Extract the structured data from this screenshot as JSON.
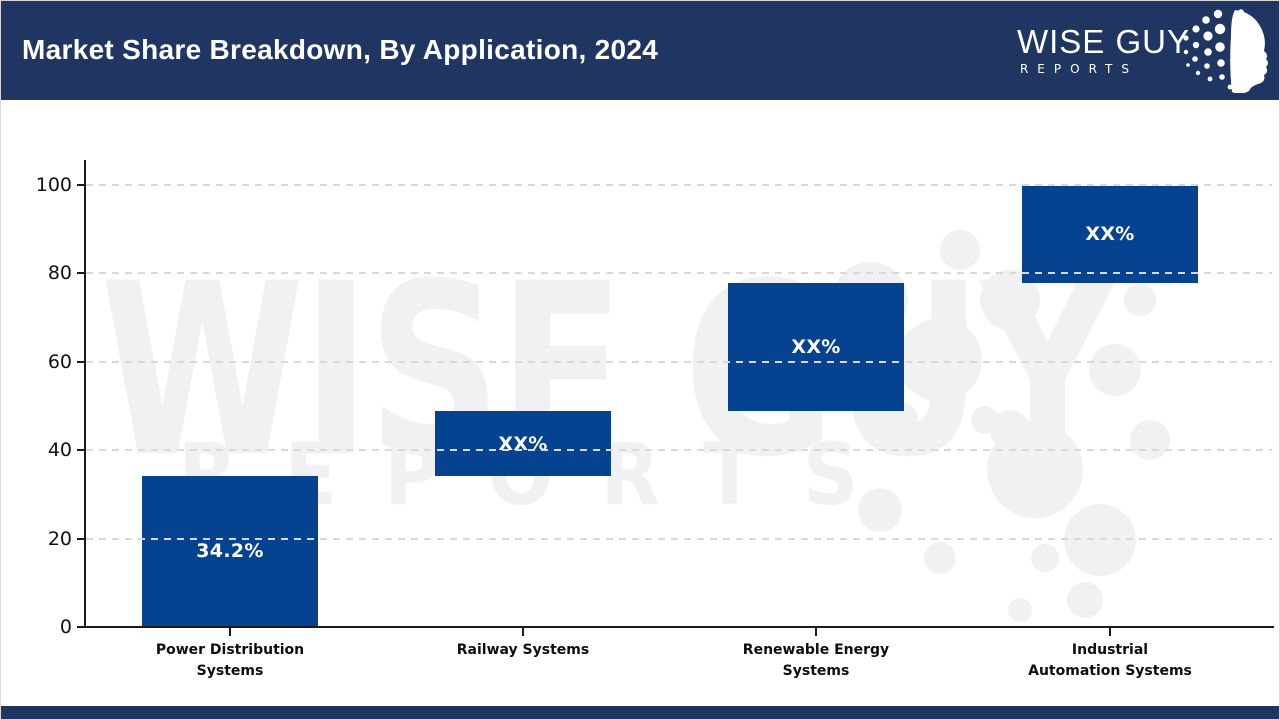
{
  "header": {
    "title": "Market Share Breakdown, By Application, 2024",
    "logo": {
      "wordmark": "WISE GUY",
      "sub": "REPORTS"
    }
  },
  "watermark": {
    "wordmark": "WISE GUY",
    "sub": "REPORTS"
  },
  "chart_data": {
    "type": "bar",
    "subtype": "waterfall-floating-segments",
    "title": "Market Share Breakdown, By Application, 2024",
    "categories": [
      "Power Distribution Systems",
      "Railway Systems",
      "Renewable Energy Systems",
      "Industrial Automation Systems"
    ],
    "category_lines": [
      [
        "Power Distribution",
        "Systems"
      ],
      [
        "Railway Systems"
      ],
      [
        "Renewable Energy",
        "Systems"
      ],
      [
        "Industrial",
        "Automation Systems"
      ]
    ],
    "segments": [
      {
        "category": "Power Distribution Systems",
        "start": 0,
        "end": 34.2,
        "label": "34.2%"
      },
      {
        "category": "Railway Systems",
        "start": 34.2,
        "end": 48.8,
        "label": "XX%"
      },
      {
        "category": "Renewable Energy Systems",
        "start": 48.8,
        "end": 77.8,
        "label": "XX%"
      },
      {
        "category": "Industrial Automation Systems",
        "start": 77.8,
        "end": 99.8,
        "label": "XX%"
      }
    ],
    "yticks": [
      0,
      20,
      40,
      60,
      80,
      100
    ],
    "ylim": [
      0,
      105
    ],
    "xlabel": "",
    "ylabel": "",
    "legend": "none",
    "grid": "horizontal-dashed-over-bars",
    "bar_color": "#05428f",
    "gridline_color": "#d9d9d9",
    "axis_color": "#1a1a1a",
    "header_bg": "#1f3562",
    "label_color_inside": "#ffffff"
  }
}
